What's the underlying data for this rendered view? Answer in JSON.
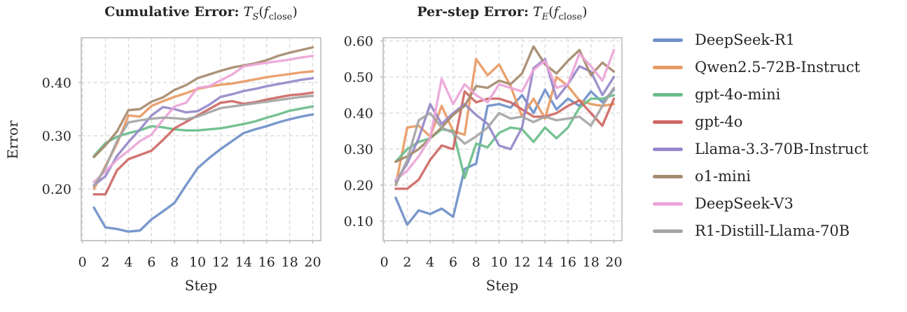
{
  "figure_titles": {
    "left": {
      "prefix": "Cumulative Error:",
      "t_sym": "T",
      "t_sub": "S",
      "f_sym": "f",
      "f_sub": "close",
      "open_paren": "(",
      "close_paren": ")"
    },
    "right": {
      "prefix": "Per-step Error:",
      "t_sym": "T",
      "t_sub": "E",
      "f_sym": "f",
      "f_sub": "close",
      "open_paren": "(",
      "close_paren": ")"
    }
  },
  "axis_labels": {
    "ylabel": "Error",
    "xlabel_left": "Step",
    "xlabel_right": "Step"
  },
  "legend": {
    "items": [
      {
        "label": "DeepSeek-R1",
        "color": "#6e8fc9"
      },
      {
        "label": "Qwen2.5-72B-Instruct",
        "color": "#e89a64"
      },
      {
        "label": "gpt-4o-mini",
        "color": "#6abd8a"
      },
      {
        "label": "gpt-4o",
        "color": "#cd6864"
      },
      {
        "label": "Llama-3.3-70B-Instruct",
        "color": "#9688c9"
      },
      {
        "label": "o1-mini",
        "color": "#a58a6e"
      },
      {
        "label": "DeepSeek-V3",
        "color": "#eba5d8"
      },
      {
        "label": "R1-Distill-Llama-70B",
        "color": "#a5a5a5"
      }
    ]
  },
  "chart_data": [
    {
      "type": "line",
      "title": "Cumulative Error: T_S(f_close)",
      "xlabel": "Step",
      "ylabel": "Error",
      "x": [
        1,
        2,
        3,
        4,
        5,
        6,
        7,
        8,
        9,
        10,
        11,
        12,
        13,
        14,
        15,
        16,
        17,
        18,
        19,
        20
      ],
      "xlim": [
        -0.1,
        20.7
      ],
      "ylim": [
        0.103,
        0.484
      ],
      "xticks": [
        0,
        2,
        4,
        6,
        8,
        10,
        12,
        14,
        16,
        18,
        20
      ],
      "yticks": [
        0.2,
        0.3,
        0.4
      ],
      "ytick_labels": [
        "0.20",
        "0.30",
        "0.40"
      ],
      "grid": true,
      "series": [
        {
          "name": "DeepSeek-R1",
          "color": "#6e8fc9",
          "values": [
            0.165,
            0.128,
            0.125,
            0.12,
            0.122,
            0.143,
            0.158,
            0.174,
            0.207,
            0.239,
            0.258,
            0.275,
            0.29,
            0.305,
            0.312,
            0.318,
            0.325,
            0.331,
            0.336,
            0.34
          ]
        },
        {
          "name": "Qwen2.5-72B-Instruct",
          "color": "#e89a64",
          "values": [
            0.2,
            0.243,
            0.285,
            0.338,
            0.336,
            0.356,
            0.365,
            0.373,
            0.38,
            0.388,
            0.392,
            0.396,
            0.398,
            0.402,
            0.406,
            0.41,
            0.413,
            0.416,
            0.419,
            0.421
          ]
        },
        {
          "name": "gpt-4o-mini",
          "color": "#6abd8a",
          "values": [
            0.262,
            0.286,
            0.298,
            0.305,
            0.31,
            0.318,
            0.316,
            0.312,
            0.31,
            0.31,
            0.312,
            0.314,
            0.318,
            0.322,
            0.327,
            0.334,
            0.34,
            0.347,
            0.351,
            0.355
          ]
        },
        {
          "name": "gpt-4o",
          "color": "#cd6864",
          "values": [
            0.19,
            0.19,
            0.235,
            0.256,
            0.264,
            0.272,
            0.292,
            0.314,
            0.326,
            0.338,
            0.35,
            0.362,
            0.365,
            0.36,
            0.363,
            0.368,
            0.372,
            0.376,
            0.378,
            0.381
          ]
        },
        {
          "name": "Llama-3.3-70B-Instruct",
          "color": "#9688c9",
          "values": [
            0.207,
            0.224,
            0.262,
            0.288,
            0.312,
            0.338,
            0.354,
            0.35,
            0.344,
            0.346,
            0.358,
            0.373,
            0.378,
            0.384,
            0.388,
            0.393,
            0.397,
            0.401,
            0.405,
            0.408
          ]
        },
        {
          "name": "o1-mini",
          "color": "#a58a6e",
          "values": [
            0.26,
            0.282,
            0.308,
            0.348,
            0.35,
            0.364,
            0.372,
            0.386,
            0.395,
            0.408,
            0.415,
            0.422,
            0.428,
            0.432,
            0.436,
            0.442,
            0.45,
            0.456,
            0.461,
            0.466
          ]
        },
        {
          "name": "DeepSeek-V3",
          "color": "#eba5d8",
          "values": [
            0.213,
            0.233,
            0.255,
            0.272,
            0.29,
            0.302,
            0.33,
            0.355,
            0.362,
            0.39,
            0.393,
            0.404,
            0.415,
            0.43,
            0.434,
            0.437,
            0.44,
            0.443,
            0.447,
            0.45
          ]
        },
        {
          "name": "R1-Distill-Llama-70B",
          "color": "#a5a5a5",
          "values": [
            0.205,
            0.24,
            0.29,
            0.325,
            0.329,
            0.332,
            0.334,
            0.333,
            0.331,
            0.336,
            0.344,
            0.352,
            0.355,
            0.358,
            0.361,
            0.364,
            0.367,
            0.37,
            0.373,
            0.375
          ]
        }
      ]
    },
    {
      "type": "line",
      "title": "Per-step Error: T_E(f_close)",
      "xlabel": "Step",
      "ylabel": "",
      "x": [
        1,
        2,
        3,
        4,
        5,
        6,
        7,
        8,
        9,
        10,
        11,
        12,
        13,
        14,
        15,
        16,
        17,
        18,
        19,
        20
      ],
      "xlim": [
        -0.1,
        20.7
      ],
      "ylim": [
        0.046,
        0.609
      ],
      "xticks": [
        0,
        2,
        4,
        6,
        8,
        10,
        12,
        14,
        16,
        18,
        20
      ],
      "yticks": [
        0.1,
        0.2,
        0.3,
        0.4,
        0.5,
        0.6
      ],
      "ytick_labels": [
        "0.10",
        "0.20",
        "0.30",
        "0.40",
        "0.50",
        "0.60"
      ],
      "grid": true,
      "series": [
        {
          "name": "DeepSeek-R1",
          "color": "#6e8fc9",
          "values": [
            0.165,
            0.09,
            0.13,
            0.12,
            0.135,
            0.112,
            0.245,
            0.26,
            0.42,
            0.425,
            0.415,
            0.45,
            0.4,
            0.465,
            0.41,
            0.44,
            0.42,
            0.46,
            0.43,
            0.465
          ]
        },
        {
          "name": "Qwen2.5-72B-Instruct",
          "color": "#e89a64",
          "values": [
            0.2,
            0.36,
            0.365,
            0.335,
            0.42,
            0.35,
            0.34,
            0.55,
            0.505,
            0.535,
            0.475,
            0.39,
            0.44,
            0.385,
            0.5,
            0.475,
            0.435,
            0.425,
            0.42,
            0.425
          ]
        },
        {
          "name": "gpt-4o-mini",
          "color": "#6abd8a",
          "values": [
            0.265,
            0.3,
            0.32,
            0.33,
            0.355,
            0.35,
            0.22,
            0.315,
            0.305,
            0.345,
            0.36,
            0.355,
            0.32,
            0.36,
            0.33,
            0.36,
            0.415,
            0.44,
            0.44,
            0.45
          ]
        },
        {
          "name": "gpt-4o",
          "color": "#cd6864",
          "values": [
            0.19,
            0.19,
            0.215,
            0.27,
            0.31,
            0.3,
            0.46,
            0.43,
            0.44,
            0.44,
            0.43,
            0.41,
            0.39,
            0.39,
            0.4,
            0.42,
            0.435,
            0.4,
            0.365,
            0.44
          ]
        },
        {
          "name": "Llama-3.3-70B-Instruct",
          "color": "#9688c9",
          "values": [
            0.21,
            0.26,
            0.33,
            0.425,
            0.37,
            0.4,
            0.425,
            0.395,
            0.37,
            0.31,
            0.3,
            0.36,
            0.525,
            0.55,
            0.44,
            0.48,
            0.53,
            0.515,
            0.45,
            0.5
          ]
        },
        {
          "name": "o1-mini",
          "color": "#a58a6e",
          "values": [
            0.265,
            0.28,
            0.3,
            0.33,
            0.36,
            0.395,
            0.42,
            0.475,
            0.47,
            0.49,
            0.48,
            0.51,
            0.585,
            0.535,
            0.51,
            0.545,
            0.575,
            0.505,
            0.54,
            0.515
          ]
        },
        {
          "name": "DeepSeek-V3",
          "color": "#eba5d8",
          "values": [
            0.215,
            0.24,
            0.28,
            0.33,
            0.495,
            0.425,
            0.48,
            0.45,
            0.43,
            0.48,
            0.47,
            0.46,
            0.52,
            0.545,
            0.47,
            0.48,
            0.565,
            0.53,
            0.49,
            0.575
          ]
        },
        {
          "name": "R1-Distill-Llama-70B",
          "color": "#a5a5a5",
          "values": [
            0.2,
            0.27,
            0.38,
            0.4,
            0.36,
            0.345,
            0.315,
            0.335,
            0.36,
            0.4,
            0.385,
            0.39,
            0.375,
            0.39,
            0.38,
            0.385,
            0.39,
            0.365,
            0.42,
            0.47
          ]
        }
      ]
    }
  ]
}
